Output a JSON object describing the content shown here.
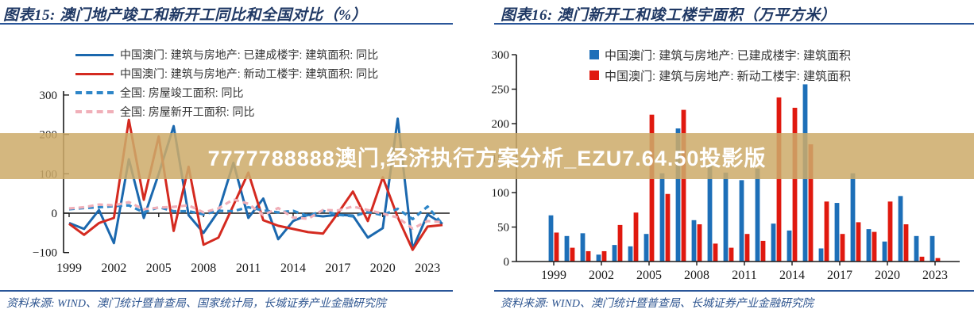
{
  "banner": {
    "text": "7777788888澳门,经济执行方案分析_EZU7.64.50投影版",
    "bg_color": "#cdab6a",
    "text_color": "#ffffff"
  },
  "panels": {
    "left": {
      "title": "图表15:  澳门地产竣工和新开工同比和全国对比（%）",
      "source": "资料来源: WIND、澳门统计暨普查局、国家统计局，长城证券产业金融研究院"
    },
    "right": {
      "title": "图表16:  澳门新开工和竣工楼宇面积（万平方米）",
      "source": "资料来源: WIND、澳门统计暨普查局、长城证券产业金融研究院"
    }
  },
  "colors": {
    "title_text": "#1f3864",
    "rule": "#2a5699",
    "source_text": "#2e5590",
    "axis": "#1a1a1a",
    "macau_completed_line": "#1b68ae",
    "macau_new_line": "#d42a20",
    "national_completed_line": "#2e86c8",
    "national_new_line": "#f0afb8",
    "bar_completed": "#1d6fb8",
    "bar_new": "#e0190f"
  },
  "chart_data": [
    {
      "type": "line",
      "title": "澳门地产竣工和新开工同比和全国对比（%）",
      "x": [
        1999,
        2000,
        2001,
        2002,
        2003,
        2004,
        2005,
        2006,
        2007,
        2008,
        2009,
        2010,
        2011,
        2012,
        2013,
        2014,
        2015,
        2016,
        2017,
        2018,
        2019,
        2020,
        2021,
        2022,
        2023,
        2024
      ],
      "xticks": [
        1999,
        2002,
        2005,
        2008,
        2011,
        2014,
        2017,
        2020,
        2023
      ],
      "ylim": [
        -100,
        300
      ],
      "yticks": [
        -100,
        0,
        100,
        200,
        300
      ],
      "grid": false,
      "legend_position": "top-left",
      "series": [
        {
          "name": "中国澳门: 建筑与房地产: 已建成楼宇: 建筑面积: 同比",
          "style": "solid",
          "color": "#1b68ae",
          "values": [
            -25,
            -40,
            8,
            -76,
            137,
            -12,
            100,
            221,
            -5,
            -50,
            5,
            128,
            -12,
            37,
            -66,
            -20,
            -4,
            -8,
            -4,
            -6,
            -62,
            -38,
            240,
            -91,
            -3,
            -27
          ]
        },
        {
          "name": "中国澳门: 建筑与房地产: 新动工楼宇: 建筑面积: 同比",
          "style": "solid",
          "color": "#d42a20",
          "values": [
            -27,
            -55,
            -25,
            -12,
            237,
            34,
            195,
            -45,
            118,
            -80,
            -62,
            20,
            103,
            -18,
            -32,
            -40,
            -48,
            -52,
            0,
            55,
            -20,
            91,
            -10,
            -93,
            -34,
            -30
          ]
        },
        {
          "name": "全国: 房屋竣工面积: 同比",
          "style": "dashed",
          "color": "#2e86c8",
          "values": [
            10,
            13,
            15,
            18,
            20,
            2,
            15,
            5,
            5,
            -3,
            6,
            5,
            15,
            7,
            2,
            6,
            -7,
            6,
            -4,
            -8,
            3,
            -5,
            11,
            -15,
            17,
            -28
          ]
        },
        {
          "name": "全国: 房屋新开工面积: 同比",
          "style": "dashed",
          "color": "#f0afb8",
          "values": [
            12,
            15,
            22,
            20,
            28,
            10,
            14,
            16,
            20,
            2,
            12,
            35,
            24,
            -5,
            13,
            -11,
            -14,
            8,
            7,
            17,
            8,
            -1,
            -11,
            -39,
            -20,
            -23
          ]
        }
      ]
    },
    {
      "type": "bar",
      "title": "澳门新开工和竣工楼宇面积（万平方米）",
      "categories": [
        1999,
        2000,
        2001,
        2002,
        2003,
        2004,
        2005,
        2006,
        2007,
        2008,
        2009,
        2010,
        2011,
        2012,
        2013,
        2014,
        2015,
        2016,
        2017,
        2018,
        2019,
        2020,
        2021,
        2022,
        2023
      ],
      "xticks": [
        1999,
        2002,
        2005,
        2008,
        2011,
        2014,
        2017,
        2020,
        2023
      ],
      "ylim": [
        0,
        300
      ],
      "yticks": [
        0,
        50,
        100,
        150,
        200,
        250,
        300
      ],
      "grid": false,
      "legend_position": "top",
      "series": [
        {
          "name": "中国澳门: 建筑与房地产: 已建成楼宇: 建筑面积",
          "color": "#1d6fb8",
          "values": [
            67,
            37,
            41,
            10,
            24,
            22,
            40,
            128,
            193,
            60,
            140,
            129,
            118,
            135,
            55,
            45,
            257,
            19,
            85,
            128,
            47,
            29,
            95,
            37,
            37
          ]
        },
        {
          "name": "中国澳门: 建筑与房地产: 新动工楼宇: 建筑面积",
          "color": "#e0190f",
          "values": [
            42,
            20,
            15,
            15,
            53,
            71,
            213,
            98,
            220,
            54,
            26,
            20,
            40,
            30,
            238,
            223,
            170,
            87,
            40,
            57,
            43,
            87,
            54,
            7,
            5
          ]
        }
      ]
    }
  ]
}
